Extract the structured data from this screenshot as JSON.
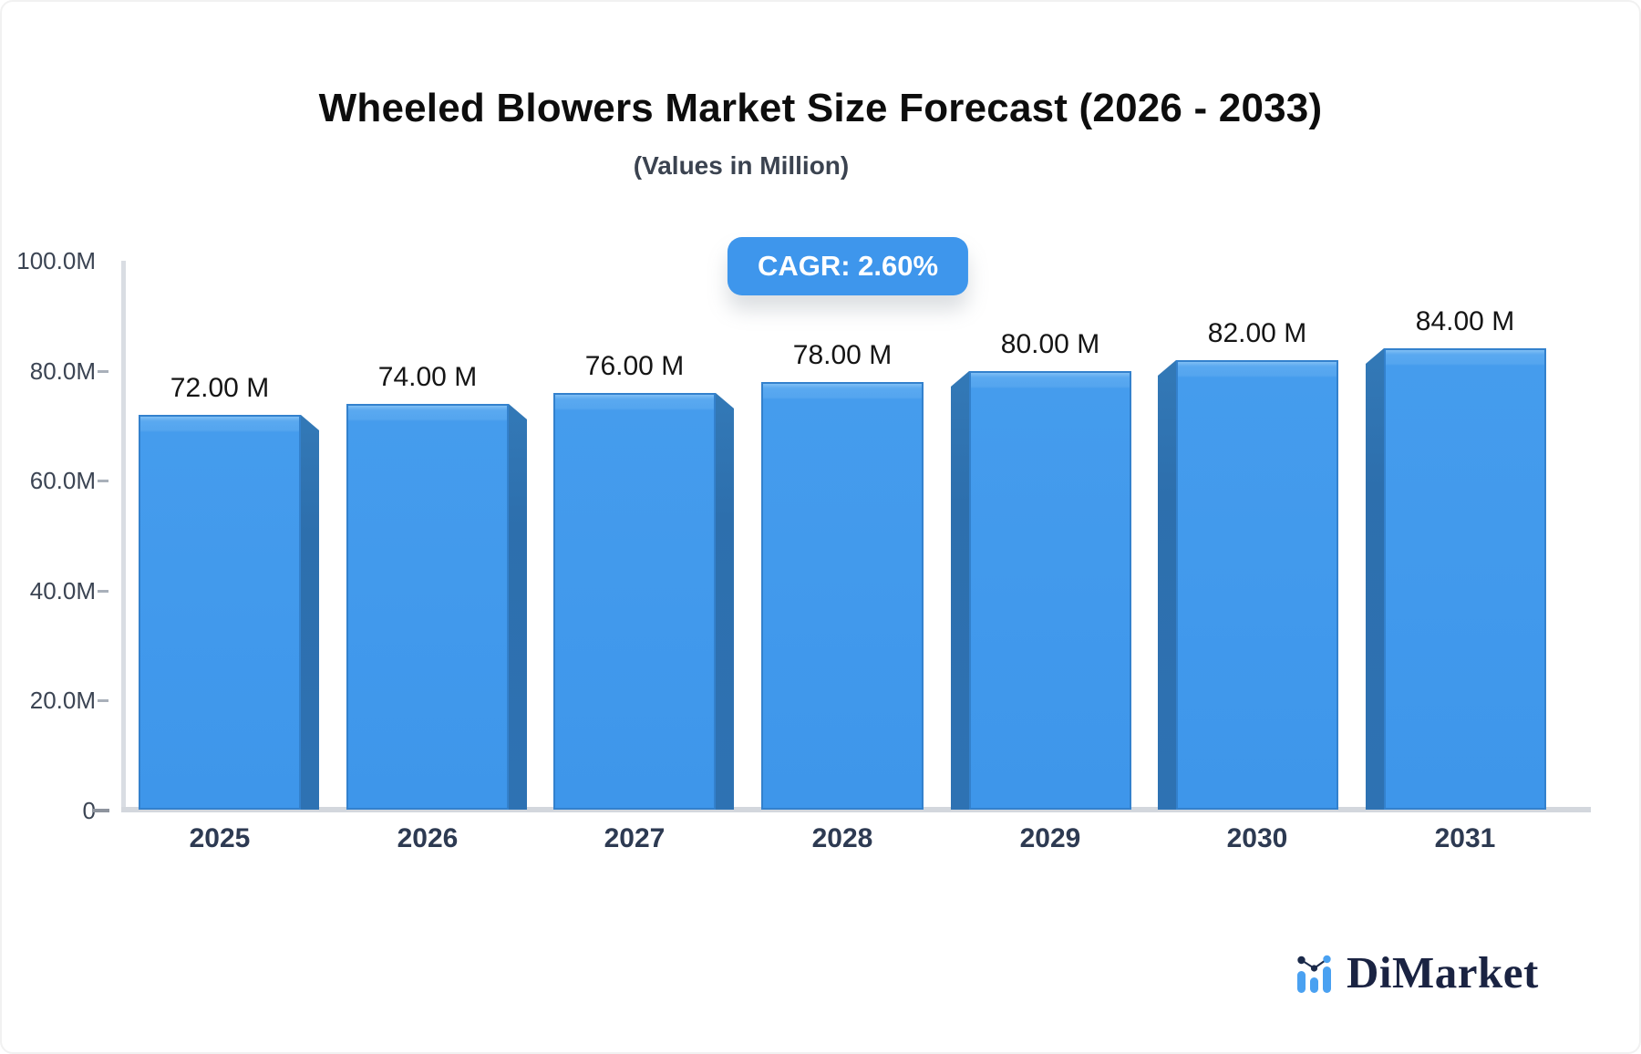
{
  "header": {
    "title": "Wheeled Blowers Market Size Forecast (2026 - 2033)",
    "subtitle": "(Values in Million)",
    "cagr_badge": "CAGR: 2.60%"
  },
  "chart_data": {
    "type": "bar",
    "title": "Wheeled Blowers Market Size Forecast (2026 - 2033)",
    "subtitle": "(Values in Million)",
    "cagr": "2.60%",
    "unit": "Million",
    "categories": [
      "2025",
      "2026",
      "2027",
      "2028",
      "2029",
      "2030",
      "2031"
    ],
    "values": [
      72,
      74,
      76,
      78,
      80,
      82,
      84
    ],
    "value_labels": [
      "72.00 M",
      "74.00 M",
      "76.00 M",
      "78.00 M",
      "80.00 M",
      "82.00 M",
      "84.00 M"
    ],
    "y_axis": {
      "range": [
        0,
        100
      ],
      "ticks": [
        {
          "label": "100.0M",
          "value": 100
        },
        {
          "label": "80.0M",
          "value": 80
        },
        {
          "label": "60.0M",
          "value": 60
        },
        {
          "label": "40.0M",
          "value": 40
        },
        {
          "label": "20.0M",
          "value": 20
        },
        {
          "label": "0",
          "value": 0
        }
      ]
    },
    "grid": false,
    "legend": false,
    "colors": {
      "bar_front": "#459CED",
      "bar_side": "#2D6FAD",
      "badge_bg": "#3E96EC",
      "axis_line": "#D8DCE2",
      "value_text": "#151515",
      "tick_text": "#3B4453",
      "category_text": "#2D3A52"
    }
  },
  "branding": {
    "name": "DiMarket",
    "icon": "bar-chart-trend-icon",
    "icon_bar_color": "#4AA1F1",
    "icon_dot_color": "#1B2A4A"
  }
}
